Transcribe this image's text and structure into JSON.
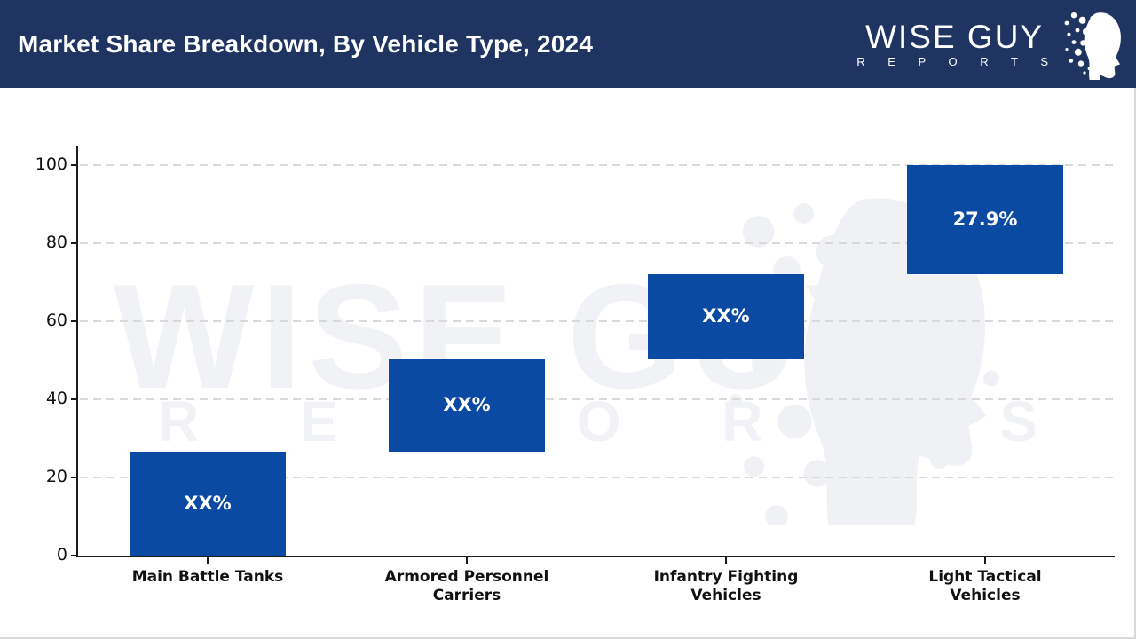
{
  "header": {
    "title": "Market Share Breakdown, By Vehicle Type, 2024",
    "background_color": "#1f3461",
    "logo": {
      "line1": "WISE GUY",
      "line2": "R E P O R T S"
    }
  },
  "watermark": {
    "line1": "WISE GUY",
    "line2": "R E P O R T S"
  },
  "chart_data": {
    "type": "bar",
    "subtype": "waterfall",
    "title": "Market Share Breakdown, By Vehicle Type, 2024",
    "xlabel": "",
    "ylabel": "",
    "ylim": [
      0,
      100
    ],
    "yticks": [
      0,
      20,
      40,
      60,
      80,
      100
    ],
    "grid": "horizontal dashed",
    "legend": "none",
    "bar_color": "#0b4aa2",
    "bar_label_color": "#ffffff",
    "categories": [
      "Main Battle Tanks",
      "Armored Personnel\nCarriers",
      "Infantry Fighting\nVehicles",
      "Light Tactical\nVehicles"
    ],
    "segments": [
      {
        "category": "Main Battle Tanks",
        "start": 0,
        "end": 26.7,
        "value": 26.7,
        "label": "XX%"
      },
      {
        "category": "Armored Personnel Carriers",
        "start": 26.7,
        "end": 50.5,
        "value": 23.8,
        "label": "XX%"
      },
      {
        "category": "Infantry Fighting Vehicles",
        "start": 50.5,
        "end": 72.1,
        "value": 21.6,
        "label": "XX%"
      },
      {
        "category": "Light Tactical Vehicles",
        "start": 72.1,
        "end": 100,
        "value": 27.9,
        "label": "27.9%"
      }
    ]
  }
}
